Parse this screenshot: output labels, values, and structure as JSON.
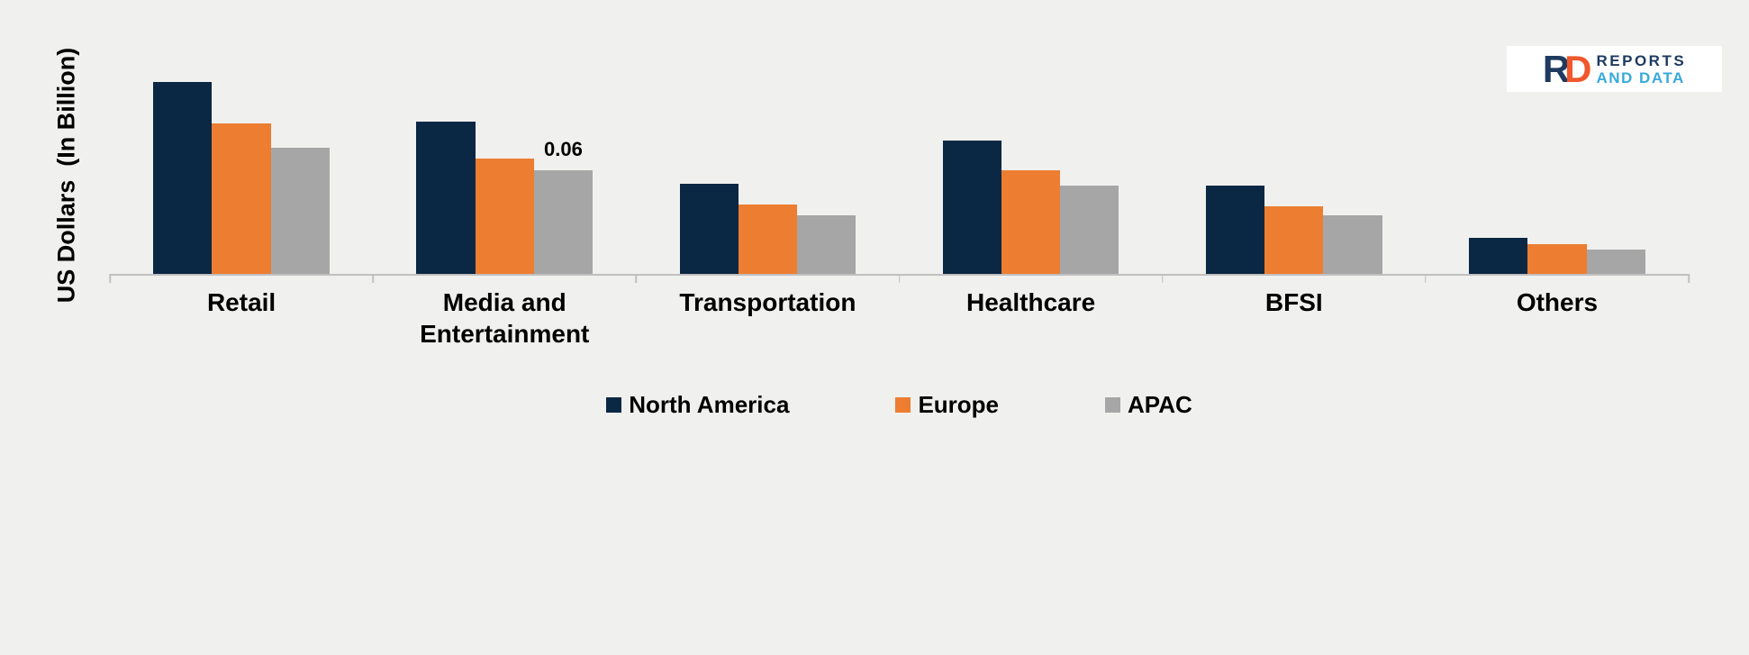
{
  "logo": {
    "mark_r": "R",
    "mark_d": "D",
    "text_line1": "REPORTS",
    "text_line2": "AND DATA",
    "colors": {
      "navy": "#1E3A5F",
      "orange": "#F1572C",
      "blue": "#38A9DC"
    }
  },
  "chart_data": {
    "type": "bar",
    "title": "",
    "xlabel": "",
    "ylabel": "US Dollars  (In Billion)",
    "categories": [
      "Retail",
      "Media and Entertainment",
      "Transportation",
      "Healthcare",
      "BFSI",
      "Others"
    ],
    "series": [
      {
        "name": "North America",
        "color": "#0A2743",
        "values": [
          0.111,
          0.088,
          0.052,
          0.077,
          0.051,
          0.021
        ]
      },
      {
        "name": "Europe",
        "color": "#ED7D31",
        "values": [
          0.087,
          0.067,
          0.04,
          0.06,
          0.039,
          0.017
        ]
      },
      {
        "name": "APAC",
        "color": "#A6A6A6",
        "values": [
          0.073,
          0.06,
          0.034,
          0.051,
          0.034,
          0.014
        ]
      }
    ],
    "ylim": [
      0,
      0.12
    ],
    "grid": false,
    "y_axis_ticks_visible": false,
    "legend_position": "bottom",
    "data_labels": [
      {
        "category": "Media and Entertainment",
        "series": "APAC",
        "text": "0.06"
      }
    ],
    "axis_color": "#C0C0C0",
    "background": "#F0F0EE",
    "text_color": "#000000"
  }
}
